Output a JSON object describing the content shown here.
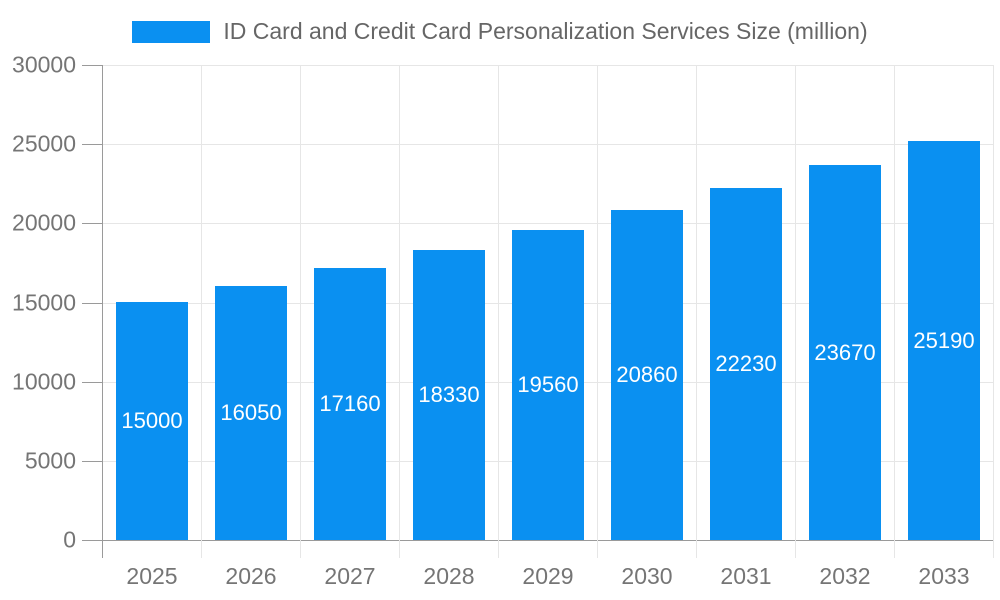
{
  "legend": {
    "label": "ID Card and Credit Card Personalization Services Size (million)"
  },
  "colors": {
    "bar": "#0a90f1",
    "axis": "#9a9a9a",
    "grid": "#e6e6e6",
    "tick_label": "#757575",
    "legend_text": "#666666",
    "bar_label": "#ffffff",
    "background": "#ffffff"
  },
  "chart_data": {
    "type": "bar",
    "title": "ID Card and Credit Card Personalization Services Size (million)",
    "series": [
      {
        "name": "ID Card and Credit Card Personalization Services Size (million)",
        "values": [
          15000,
          16050,
          17160,
          18330,
          19560,
          20860,
          22230,
          23670,
          25190
        ]
      }
    ],
    "categories": [
      "2025",
      "2026",
      "2027",
      "2028",
      "2029",
      "2030",
      "2031",
      "2032",
      "2033"
    ],
    "value_labels": [
      "15000",
      "16050",
      "17160",
      "18330",
      "19560",
      "20860",
      "22230",
      "23670",
      "25190"
    ],
    "xlabel": "",
    "ylabel": "",
    "ylim": [
      0,
      30000
    ],
    "yticks": [
      0,
      5000,
      10000,
      15000,
      20000,
      25000,
      30000
    ],
    "ytick_labels": [
      "0",
      "5000",
      "10000",
      "15000",
      "20000",
      "25000",
      "30000"
    ],
    "grid": true,
    "legend_position": "top"
  }
}
